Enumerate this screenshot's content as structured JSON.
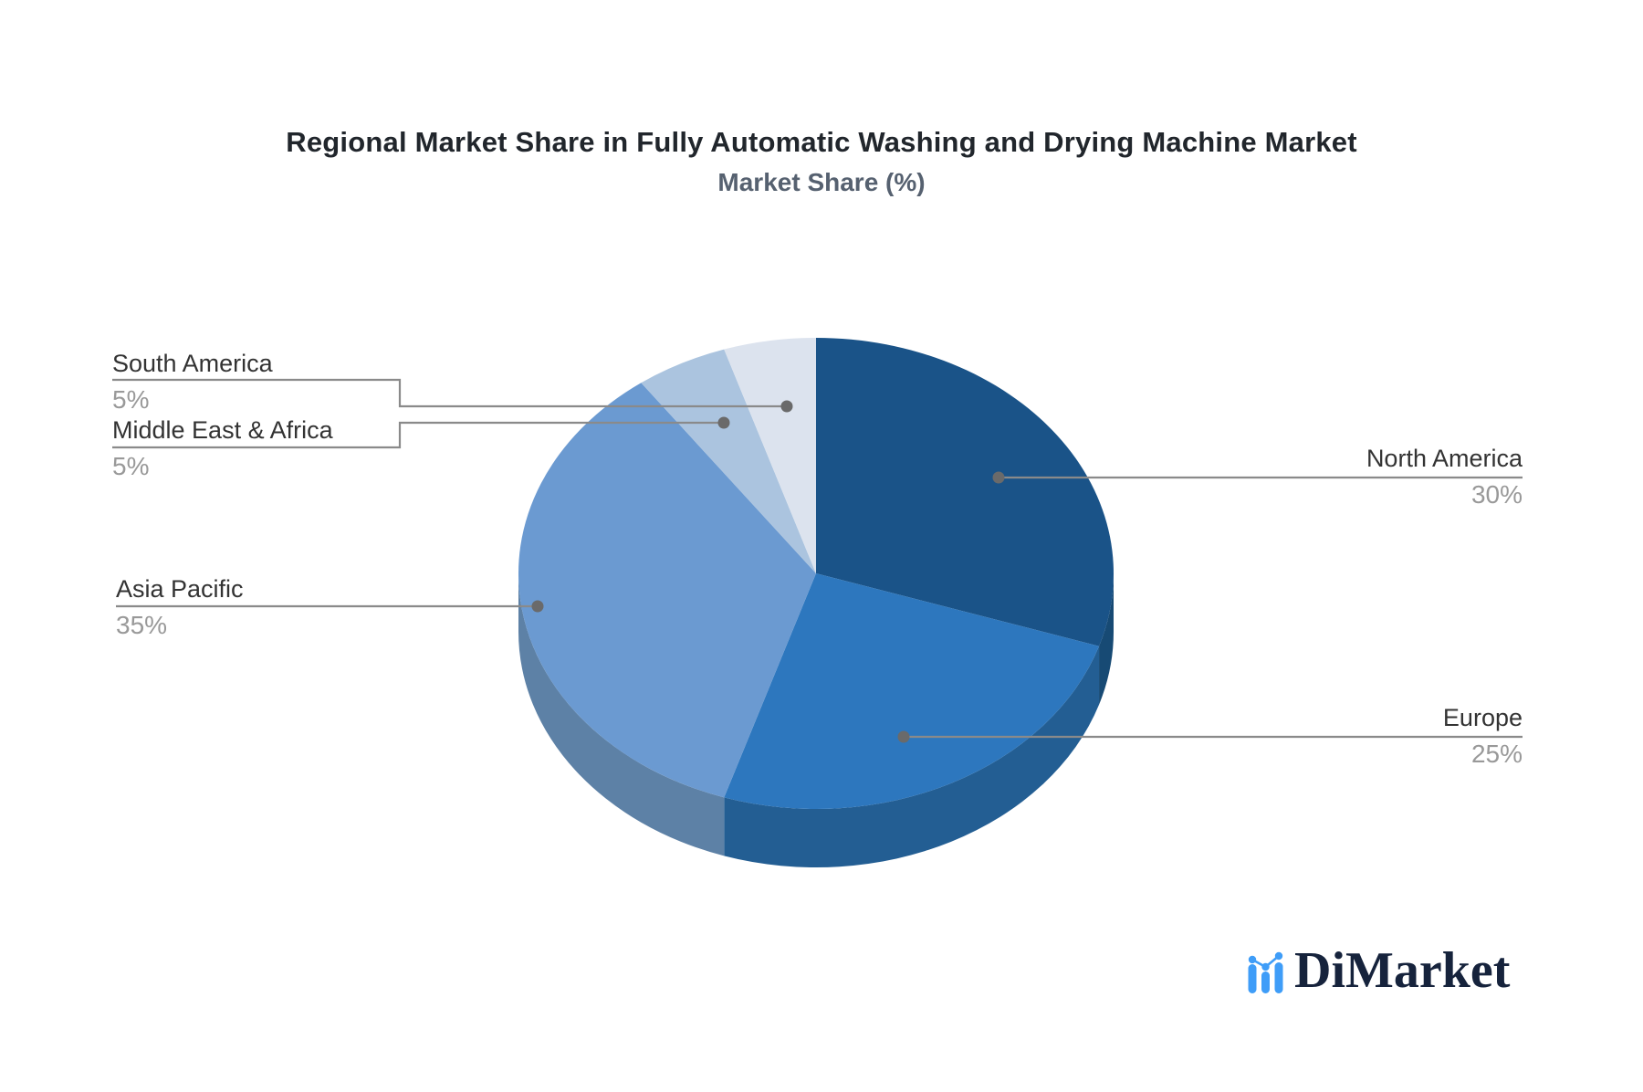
{
  "chart_data": {
    "type": "pie",
    "style": "3d",
    "title": "Regional Market Share in Fully Automatic Washing and Drying Machine Market",
    "subtitle": "Market Share (%)",
    "unit": "%",
    "direction": "clockwise",
    "start_angle_deg": 0,
    "legend": "none",
    "slices": [
      {
        "id": "north-america",
        "name": "North America",
        "value": 30,
        "value_label": "30%",
        "color": "#1a5388",
        "side_color": "#174a74",
        "label_side": "right"
      },
      {
        "id": "europe",
        "name": "Europe",
        "value": 25,
        "value_label": "25%",
        "color": "#2d77be",
        "side_color": "#235e93",
        "label_side": "right"
      },
      {
        "id": "asia-pacific",
        "name": "Asia Pacific",
        "value": 35,
        "value_label": "35%",
        "color": "#6b9ad1",
        "side_color": "#5d81a6",
        "label_side": "left"
      },
      {
        "id": "middle-east-africa",
        "name": "Middle East & Africa",
        "value": 5,
        "value_label": "5%",
        "color": "#abc4df",
        "side_color": "#8fb0d1",
        "label_side": "left"
      },
      {
        "id": "south-america",
        "name": "South America",
        "value": 5,
        "value_label": "5%",
        "color": "#dce3ee",
        "side_color": "#c2cedd",
        "label_side": "left"
      }
    ]
  },
  "branding": {
    "logo_text": "DiMarket",
    "logo_icon": "bar-chart-with-trend-dots",
    "logo_text_color": "#16233c",
    "logo_icon_color": "#3f9df8"
  },
  "style_colors": {
    "title": "#21262c",
    "subtitle": "#566170",
    "label_name": "#333333",
    "label_value": "#999999",
    "connector": "#8a8a8a",
    "connector_dot": "#6a6a6a"
  }
}
